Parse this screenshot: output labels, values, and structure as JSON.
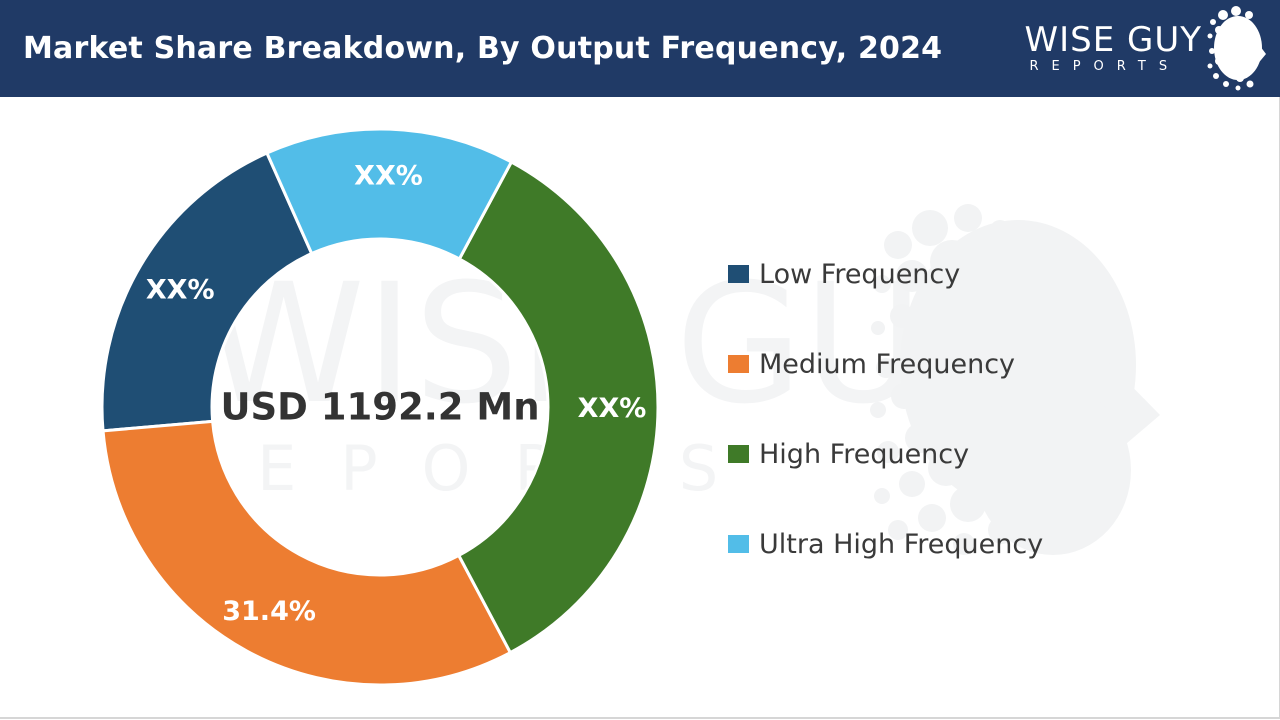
{
  "header": {
    "title": "Market Share Breakdown, By Output Frequency, 2024",
    "logo": {
      "primary": "WISE GUY",
      "secondary": "REPORTS"
    }
  },
  "watermark": {
    "primary": "WISE GUY",
    "secondary": "REPORTS"
  },
  "chart_data": {
    "type": "pie",
    "subtype": "donut",
    "title": "Market Share Breakdown, By Output Frequency, 2024",
    "center_label": "USD 1192.2 Mn",
    "start_angle_deg": 114,
    "direction": "counterclockwise",
    "legend_position": "right",
    "series": [
      {
        "name": "Low Frequency",
        "value_pct": 19.7,
        "display_label": "XX%",
        "color": "#1F4E74"
      },
      {
        "name": "Medium Frequency",
        "value_pct": 31.4,
        "display_label": "31.4%",
        "color": "#ED7D31"
      },
      {
        "name": "High Frequency",
        "value_pct": 34.4,
        "display_label": "XX%",
        "color": "#3F7A28"
      },
      {
        "name": "Ultra High Frequency",
        "value_pct": 14.5,
        "display_label": "XX%",
        "color": "#52BDE8"
      }
    ]
  }
}
